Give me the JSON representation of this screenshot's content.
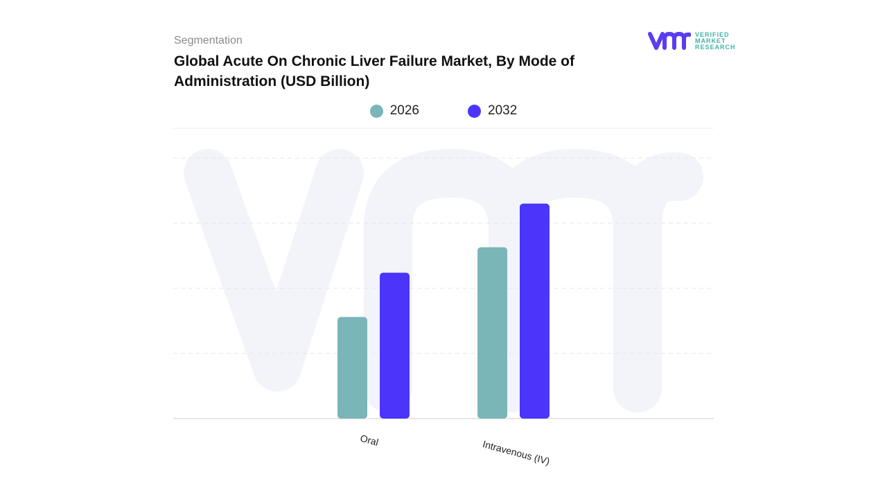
{
  "header": {
    "section": "Segmentation",
    "title": "Global Acute On Chronic Liver Failure Market, By Mode of Administration (USD Billion)"
  },
  "logo": {
    "lines": [
      "VERIFIED",
      "MARKET",
      "RESEARCH"
    ],
    "mark": "vmr"
  },
  "colors": {
    "series_2026": "#7ab5b8",
    "series_2032": "#4b35fb",
    "logo_mark": "#5a3df0",
    "logo_text": "#3fb5a8"
  },
  "chart_data": {
    "type": "bar",
    "title": "Global Acute On Chronic Liver Failure Market, By Mode of Administration (USD Billion)",
    "categories": [
      "Oral",
      "Intravenous (IV)"
    ],
    "series": [
      {
        "name": "2026",
        "values": [
          1.56,
          2.63
        ]
      },
      {
        "name": "2032",
        "values": [
          2.24,
          3.3
        ]
      }
    ],
    "ylim": [
      0,
      4
    ],
    "xlabel": "",
    "ylabel": "",
    "grid": true,
    "y_tick_labels_shown": false,
    "legend": "top-center"
  }
}
